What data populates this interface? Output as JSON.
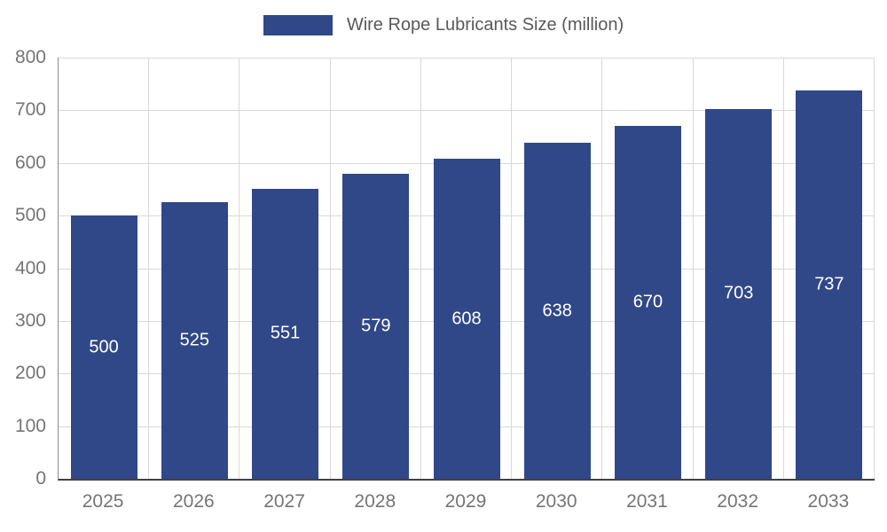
{
  "chart_data": {
    "type": "bar",
    "title": "Wire Rope Lubricants Size (million)",
    "categories": [
      "2025",
      "2026",
      "2027",
      "2028",
      "2029",
      "2030",
      "2031",
      "2032",
      "2033"
    ],
    "values": [
      500,
      525,
      551,
      579,
      608,
      638,
      670,
      703,
      737
    ],
    "xlabel": "",
    "ylabel": "",
    "ylim": [
      0,
      800
    ],
    "yticks": [
      0,
      100,
      200,
      300,
      400,
      500,
      600,
      700,
      800
    ],
    "grid": true,
    "legend_position": "top",
    "colors": {
      "bar": "#304887",
      "grid": "#d9d9d9",
      "axis_text": "#757575",
      "legend_text": "#595959",
      "value_label": "#ffffff",
      "left_spine": "#8c8c8c",
      "bottom_spine": "#424242"
    }
  }
}
